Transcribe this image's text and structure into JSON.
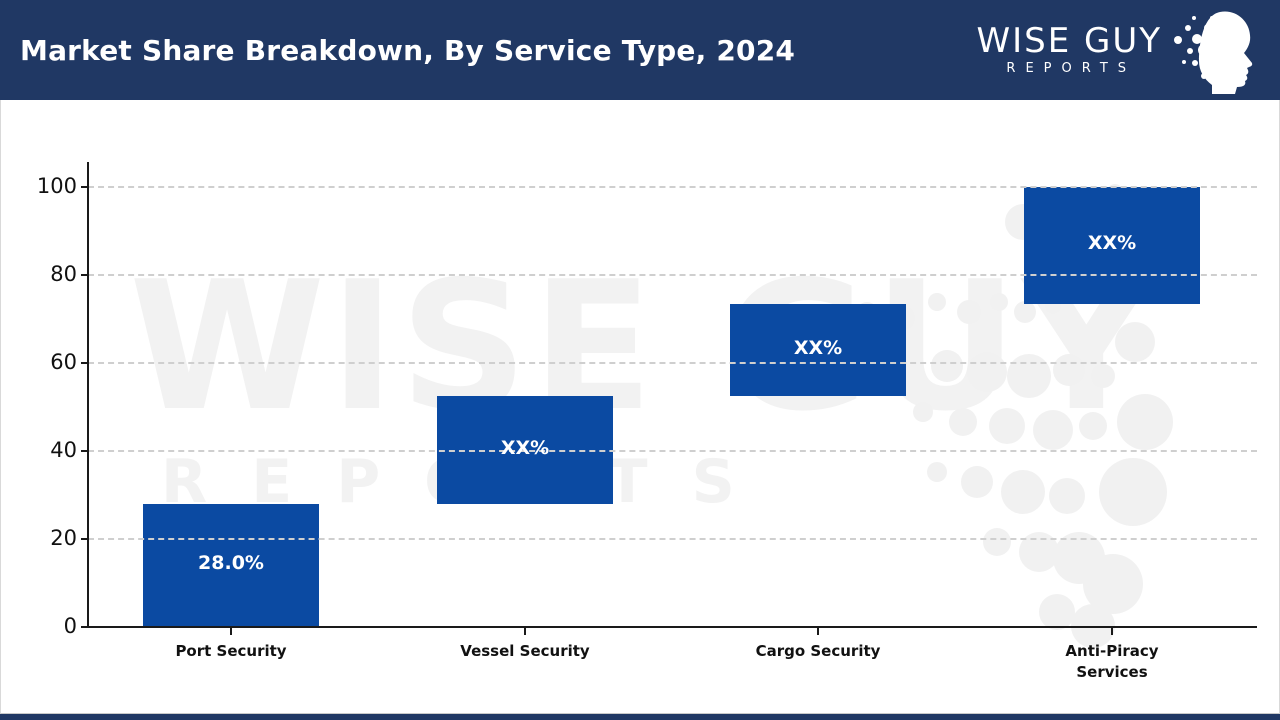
{
  "header": {
    "title": "Market Share Breakdown, By Service Type, 2024",
    "logo": {
      "line1": "WISE GUY",
      "line2": "REPORTS"
    },
    "bg_color": "#203864",
    "text_color": "#ffffff"
  },
  "watermark": {
    "line1": "WISE GUY",
    "line2": "REPORTS",
    "color": "#f2f2f2"
  },
  "footer": {
    "bar_color": "#203864"
  },
  "chart_data": {
    "type": "bar",
    "subtype": "waterfall",
    "title": "Market Share Breakdown, By Service Type, 2024",
    "categories": [
      "Port Security",
      "Vessel Security",
      "Cargo Security",
      "Anti-Piracy\nServices"
    ],
    "segments": [
      {
        "category": "Port Security",
        "label": "28.0%",
        "start": 0,
        "end": 28
      },
      {
        "category": "Vessel Security",
        "label": "XX%",
        "start": 28,
        "end": 52.5
      },
      {
        "category": "Cargo Security",
        "label": "XX%",
        "start": 52.5,
        "end": 73.5
      },
      {
        "category": "Anti-Piracy Services",
        "label": "XX%",
        "start": 73.5,
        "end": 100
      }
    ],
    "xlabel": "",
    "ylabel": "",
    "ylim": [
      0,
      100
    ],
    "yticks": [
      0,
      20,
      40,
      60,
      80,
      100
    ],
    "grid": "horizontal-dashed",
    "grid_color": "#cfcfcf",
    "bar_color": "#0b4aa2",
    "label_color": "#ffffff",
    "axis_color": "#1a1a1a",
    "legend": "none"
  }
}
